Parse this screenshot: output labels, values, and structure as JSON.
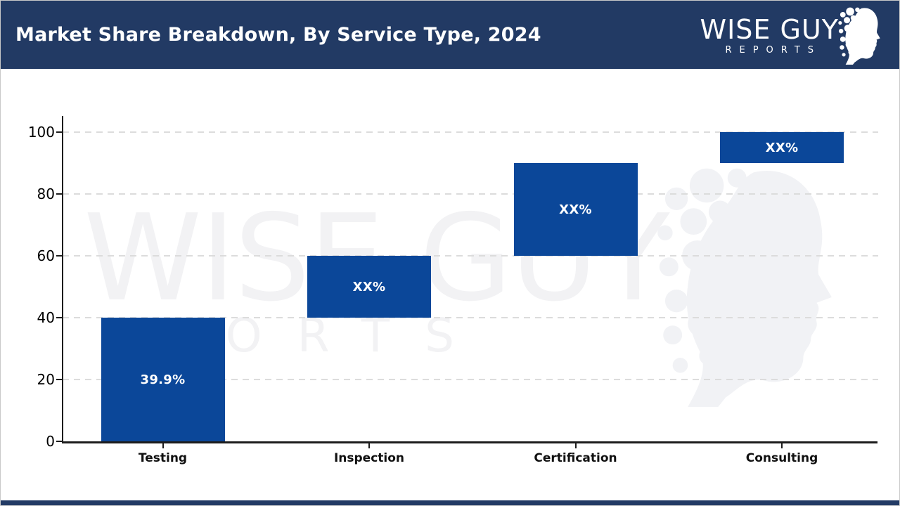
{
  "header": {
    "title": "Market Share Breakdown, By Service Type, 2024",
    "logo": {
      "line1": "WISE GUY",
      "line2": "REPORTS"
    },
    "background_color": "#223a64"
  },
  "watermark": {
    "line1": "WISE GUY",
    "line2": "PORTS"
  },
  "footer": {
    "background_color": "#223a64"
  },
  "chart_data": {
    "type": "bar",
    "subtype": "waterfall",
    "title": "Market Share Breakdown, By Service Type, 2024",
    "categories": [
      "Testing",
      "Inspection",
      "Certification",
      "Consulting"
    ],
    "series": [
      {
        "name": "Market Share",
        "segments": [
          {
            "category": "Testing",
            "start": 0,
            "end": 39.9,
            "label": "39.9%"
          },
          {
            "category": "Inspection",
            "start": 40,
            "end": 60,
            "label": "XX%"
          },
          {
            "category": "Certification",
            "start": 60,
            "end": 90,
            "label": "XX%"
          },
          {
            "category": "Consulting",
            "start": 90,
            "end": 100,
            "label": "XX%"
          }
        ]
      }
    ],
    "yticks": [
      0,
      20,
      40,
      60,
      80,
      100
    ],
    "ylim": [
      0,
      105
    ],
    "xlabel": "",
    "ylabel": "",
    "grid": "horizontal-dashed",
    "legend": "none",
    "colors": {
      "bar": "#0b4799",
      "bar_label": "#ffffff",
      "grid": "#dcdcdc",
      "axis": "#1c1c1c",
      "watermark": "#f2f2f4"
    }
  }
}
